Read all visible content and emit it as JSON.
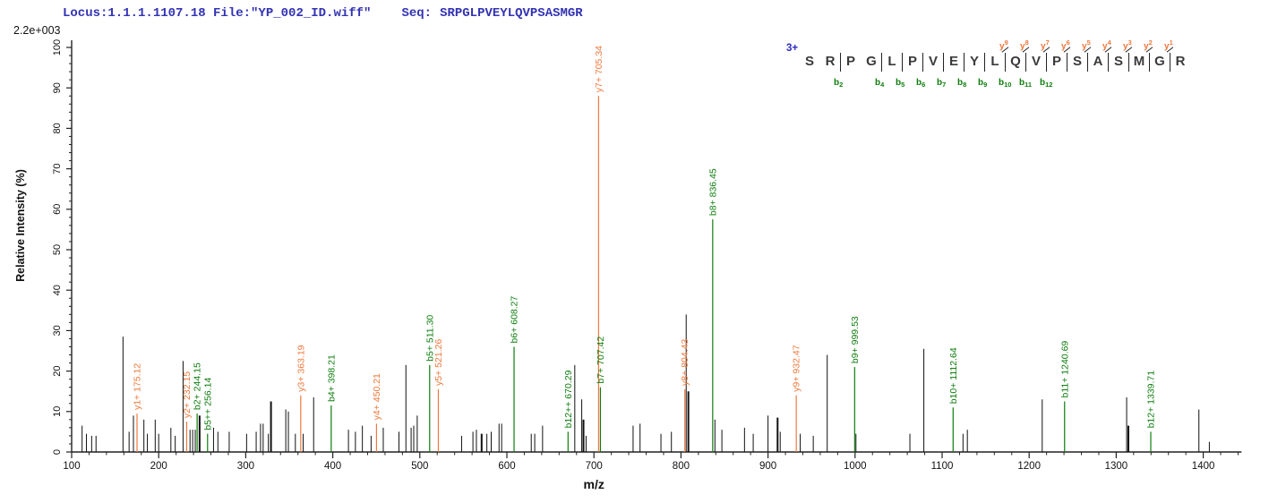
{
  "header": {
    "locus_file": "Locus:1.1.1.1107.18 File:\"YP_002_ID.wiff\"",
    "seq_label": "Seq:",
    "sequence": "SRPGLPVEYLQVPSASMGR",
    "max_intensity_label": "2.2e+003"
  },
  "peptide_panel": {
    "charge_label": "3+",
    "residues": [
      "S",
      "R",
      "P",
      "G",
      "L",
      "P",
      "V",
      "E",
      "Y",
      "L",
      "Q",
      "V",
      "P",
      "S",
      "A",
      "S",
      "M",
      "G",
      "R"
    ],
    "b_ion_markers": [
      {
        "gap": 2,
        "label": "b2"
      },
      {
        "gap": 4,
        "label": "b4"
      },
      {
        "gap": 5,
        "label": "b5"
      },
      {
        "gap": 6,
        "label": "b6"
      },
      {
        "gap": 7,
        "label": "b7"
      },
      {
        "gap": 8,
        "label": "b8"
      },
      {
        "gap": 9,
        "label": "b9"
      },
      {
        "gap": 10,
        "label": "b10"
      },
      {
        "gap": 11,
        "label": "b11"
      },
      {
        "gap": 12,
        "label": "b12"
      }
    ],
    "y_ion_markers": [
      {
        "gap": 10,
        "label": "y9"
      },
      {
        "gap": 11,
        "label": "y8"
      },
      {
        "gap": 12,
        "label": "y7"
      },
      {
        "gap": 13,
        "label": "y6"
      },
      {
        "gap": 14,
        "label": "y5"
      },
      {
        "gap": 15,
        "label": "y4"
      },
      {
        "gap": 16,
        "label": "y3"
      },
      {
        "gap": 17,
        "label": "y2"
      },
      {
        "gap": 18,
        "label": "y1"
      }
    ]
  },
  "axes": {
    "x_label": "m/z",
    "y_label": "Relative  Intensity (%)",
    "x_tick_labels": [
      100,
      200,
      300,
      400,
      500,
      600,
      700,
      800,
      900,
      1000,
      1100,
      1200,
      1300,
      1400
    ],
    "x_minor_step": 20,
    "x_range": [
      100,
      1444
    ],
    "y_tick_labels": [
      0,
      10,
      20,
      30,
      40,
      50,
      60,
      70,
      80,
      90,
      100
    ],
    "y_minor_step": 2,
    "y_range": [
      0,
      100
    ]
  },
  "colors": {
    "header_blue": "#3232b4",
    "y_ion": "#f0783c",
    "b_ion": "#0e7d0e",
    "peak_black": "#111111",
    "axis": "#222222",
    "residue_text": "#3a3a3a",
    "charge_blue": "#2a2ac0"
  },
  "chart_data": {
    "type": "bar",
    "subtype": "ms2-centroid-stick-spectrum",
    "xlabel": "m/z",
    "ylabel": "Relative  Intensity (%)",
    "xlim": [
      100,
      1444
    ],
    "ylim": [
      0,
      100
    ],
    "base_peak_intensity": "2.2e+003",
    "legend": "none",
    "grid": false,
    "annotated_peaks": [
      {
        "mz": 175.12,
        "intensity_pct": 9.5,
        "ion": "y",
        "label": "y1+ 175.12"
      },
      {
        "mz": 232.15,
        "intensity_pct": 7.5,
        "ion": "y",
        "label": "y2+ 232.15"
      },
      {
        "mz": 363.19,
        "intensity_pct": 14,
        "ion": "y",
        "label": "y3+ 363.19"
      },
      {
        "mz": 450.21,
        "intensity_pct": 7,
        "ion": "y",
        "label": "y4+ 450.21"
      },
      {
        "mz": 521.26,
        "intensity_pct": 15.5,
        "ion": "y",
        "label": "y5+ 521.26"
      },
      {
        "mz": 705.34,
        "intensity_pct": 88,
        "ion": "y",
        "label": "y7+ 705.34"
      },
      {
        "mz": 804.43,
        "intensity_pct": 15.5,
        "ion": "y",
        "label": "y8+ 804.43"
      },
      {
        "mz": 932.47,
        "intensity_pct": 14,
        "ion": "y",
        "label": "y9+ 932.47"
      },
      {
        "mz": 244.15,
        "intensity_pct": 9.5,
        "ion": "b",
        "label": "b2+ 244.15"
      },
      {
        "mz": 256.14,
        "intensity_pct": 4.5,
        "ion": "b",
        "label": "b5++ 256.14"
      },
      {
        "mz": 398.21,
        "intensity_pct": 11.5,
        "ion": "b",
        "label": "b4+ 398.21"
      },
      {
        "mz": 511.3,
        "intensity_pct": 21.5,
        "ion": "b",
        "label": "b5+ 511.30"
      },
      {
        "mz": 608.27,
        "intensity_pct": 26,
        "ion": "b",
        "label": "b6+ 608.27"
      },
      {
        "mz": 670.29,
        "intensity_pct": 5,
        "ion": "b",
        "label": "b12++ 670.29"
      },
      {
        "mz": 707.42,
        "intensity_pct": 16,
        "ion": "b",
        "label": "b7+ 707.42"
      },
      {
        "mz": 836.45,
        "intensity_pct": 57.5,
        "ion": "b",
        "label": "b8+ 836.45"
      },
      {
        "mz": 999.53,
        "intensity_pct": 21,
        "ion": "b",
        "label": "b9+ 999.53"
      },
      {
        "mz": 1112.64,
        "intensity_pct": 11,
        "ion": "b",
        "label": "b10+ 1112.64"
      },
      {
        "mz": 1240.69,
        "intensity_pct": 12.5,
        "ion": "b",
        "label": "b11+ 1240.69"
      },
      {
        "mz": 1339.71,
        "intensity_pct": 5,
        "ion": "b",
        "label": "b12+ 1339.71"
      }
    ],
    "unannotated_peaks": [
      [
        112,
        6.5
      ],
      [
        117,
        4.5
      ],
      [
        123,
        4
      ],
      [
        128,
        4
      ],
      [
        159,
        28.5
      ],
      [
        166,
        5
      ],
      [
        171,
        9
      ],
      [
        183,
        8
      ],
      [
        187,
        4.5
      ],
      [
        196,
        8
      ],
      [
        200,
        4.5
      ],
      [
        214,
        6
      ],
      [
        219,
        4
      ],
      [
        228,
        22.5
      ],
      [
        236,
        5.5
      ],
      [
        239,
        5.5
      ],
      [
        242,
        5.5
      ],
      [
        247,
        9,
        2
      ],
      [
        263,
        6
      ],
      [
        268,
        5
      ],
      [
        281,
        5
      ],
      [
        301,
        4.5
      ],
      [
        312,
        5
      ],
      [
        317,
        7
      ],
      [
        320,
        7
      ],
      [
        326,
        4.5
      ],
      [
        329,
        12.5,
        2
      ],
      [
        346,
        10.5
      ],
      [
        349,
        10
      ],
      [
        357,
        4.5
      ],
      [
        366,
        4.5
      ],
      [
        378,
        13.5
      ],
      [
        418,
        5.5
      ],
      [
        426,
        5
      ],
      [
        434,
        6.5
      ],
      [
        444,
        4
      ],
      [
        458,
        6
      ],
      [
        476,
        5
      ],
      [
        484,
        21.5
      ],
      [
        490,
        6
      ],
      [
        493,
        6.5
      ],
      [
        497,
        9
      ],
      [
        548,
        4
      ],
      [
        561,
        5
      ],
      [
        565,
        5.5
      ],
      [
        571,
        4.5,
        2
      ],
      [
        577,
        4.5
      ],
      [
        582,
        5
      ],
      [
        591,
        7
      ],
      [
        594,
        7
      ],
      [
        628,
        4.5
      ],
      [
        632,
        4.5
      ],
      [
        641,
        6.5
      ],
      [
        678,
        21.5
      ],
      [
        686,
        13
      ],
      [
        688,
        8,
        2
      ],
      [
        691,
        4
      ],
      [
        745,
        6.5
      ],
      [
        753,
        7
      ],
      [
        777,
        4.5
      ],
      [
        789,
        5
      ],
      [
        806,
        34
      ],
      [
        808.5,
        15,
        2
      ],
      [
        839,
        8
      ],
      [
        847,
        5.5
      ],
      [
        873,
        6
      ],
      [
        883,
        4.5
      ],
      [
        900,
        9
      ],
      [
        911,
        8.5,
        2
      ],
      [
        914,
        5
      ],
      [
        937,
        4.5
      ],
      [
        952,
        4
      ],
      [
        968,
        24
      ],
      [
        1001,
        4.5
      ],
      [
        1063,
        4.5
      ],
      [
        1079,
        25.5
      ],
      [
        1124,
        4.5
      ],
      [
        1129,
        5.5
      ],
      [
        1215,
        13
      ],
      [
        1312,
        13.5
      ],
      [
        1314,
        6.5,
        2
      ],
      [
        1395,
        10.5
      ],
      [
        1407,
        2.5
      ]
    ]
  }
}
